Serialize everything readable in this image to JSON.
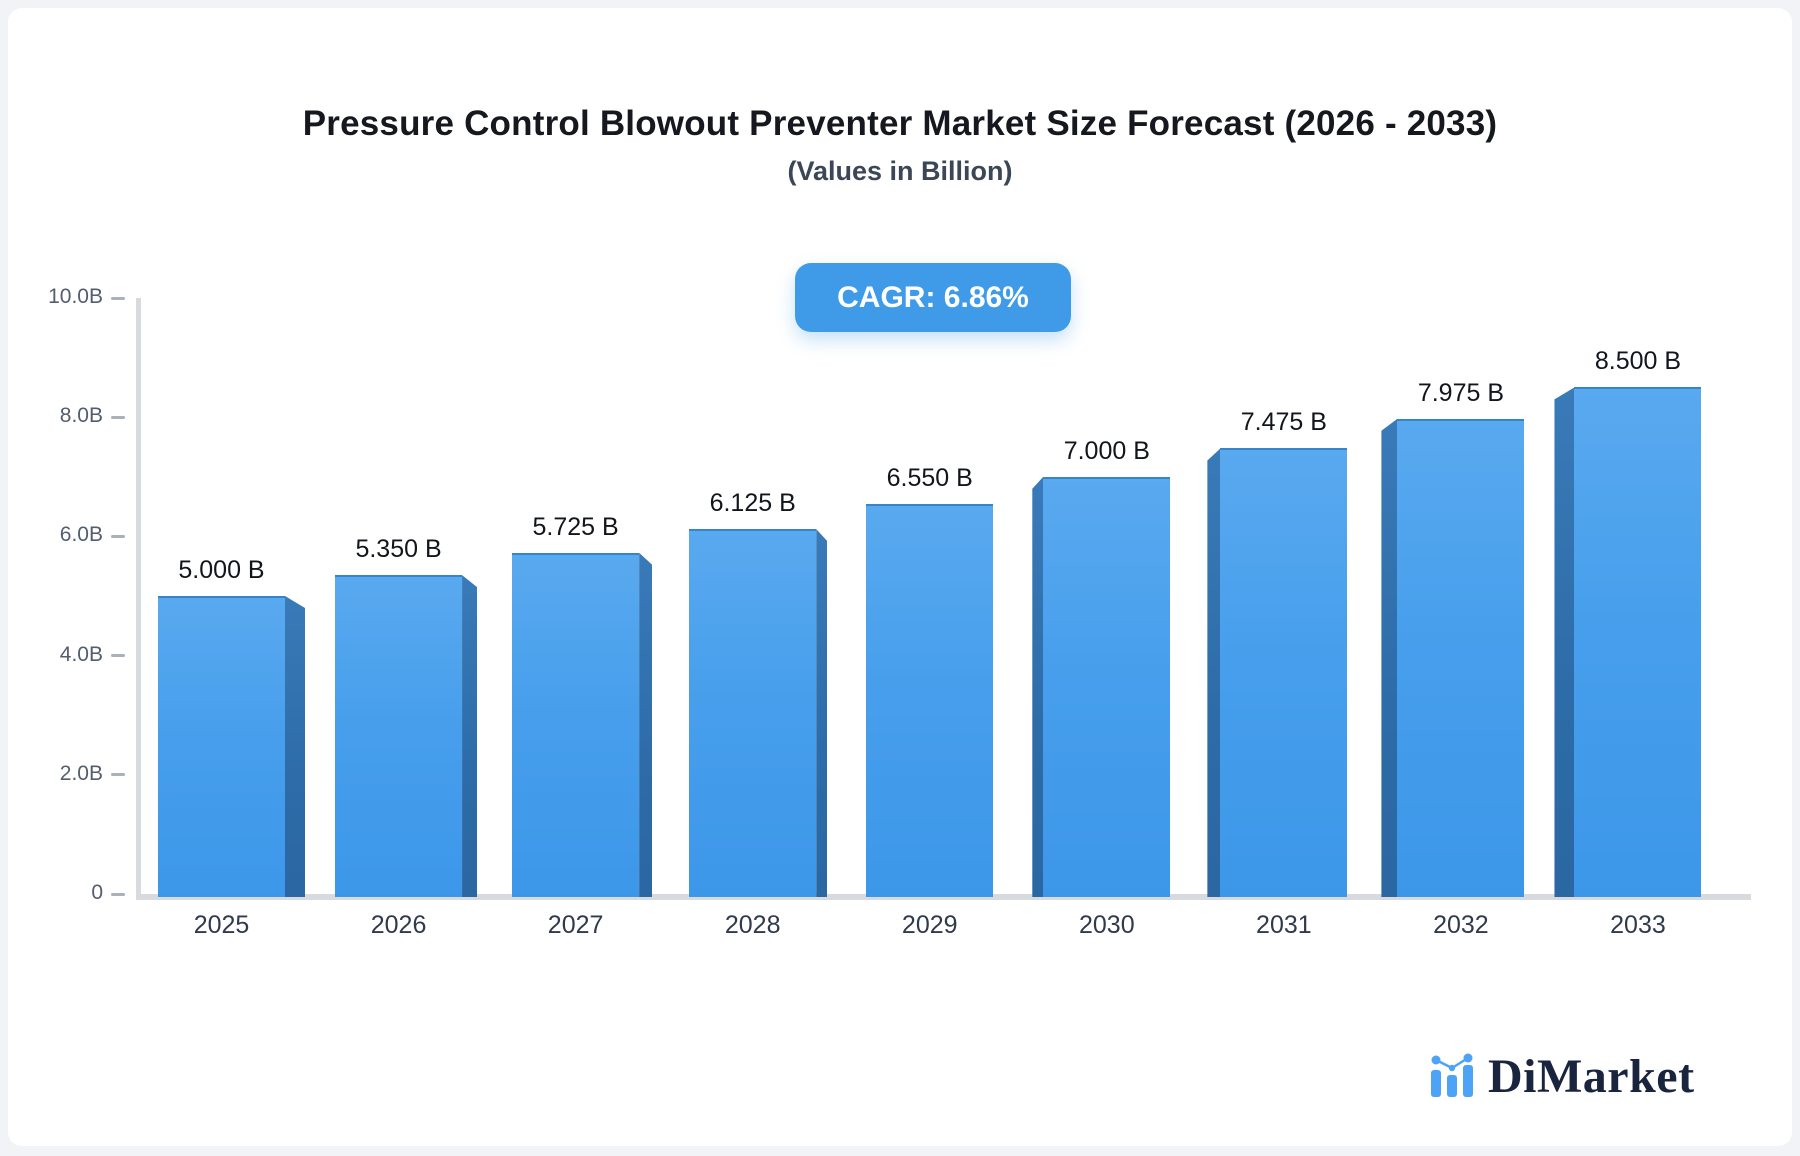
{
  "title": "Pressure Control Blowout Preventer Market Size Forecast (2026 - 2033)",
  "subtitle": "(Values in Billion)",
  "cagr_label": "CAGR: 6.86%",
  "brand": {
    "name": "DiMarket"
  },
  "colors": {
    "badge_blue": "#3f9be8",
    "bar_front_top": "#59a9ef",
    "bar_front_bottom": "#3d97e9",
    "bar_side": "#2d6ca8",
    "axis_gray": "#d7dbe0",
    "logo_blue": "#4da3f5",
    "logo_navy": "#19243f"
  },
  "chart_data": {
    "type": "bar",
    "title": "Pressure Control Blowout Preventer Market Size Forecast (2026 - 2033)",
    "subtitle": "(Values in Billion)",
    "annotation": "CAGR: 6.86%",
    "categories": [
      "2025",
      "2026",
      "2027",
      "2028",
      "2029",
      "2030",
      "2031",
      "2032",
      "2033"
    ],
    "values": [
      5.0,
      5.35,
      5.725,
      6.125,
      6.55,
      7.0,
      7.475,
      7.975,
      8.5
    ],
    "value_labels": [
      "5.000 B",
      "5.350 B",
      "5.725 B",
      "6.125 B",
      "6.550 B",
      "7.000 B",
      "7.475 B",
      "7.975 B",
      "8.500 B"
    ],
    "xlabel": "",
    "ylabel": "",
    "ylim": [
      0,
      10
    ],
    "y_tick_values": [
      0,
      2,
      4,
      6,
      8,
      10
    ],
    "y_tick_labels": [
      "0",
      "2.0B",
      "4.0B",
      "6.0B",
      "8.0B",
      "10.0B"
    ],
    "grid": false,
    "legend": "none",
    "bar_style": "3d-perspective"
  }
}
